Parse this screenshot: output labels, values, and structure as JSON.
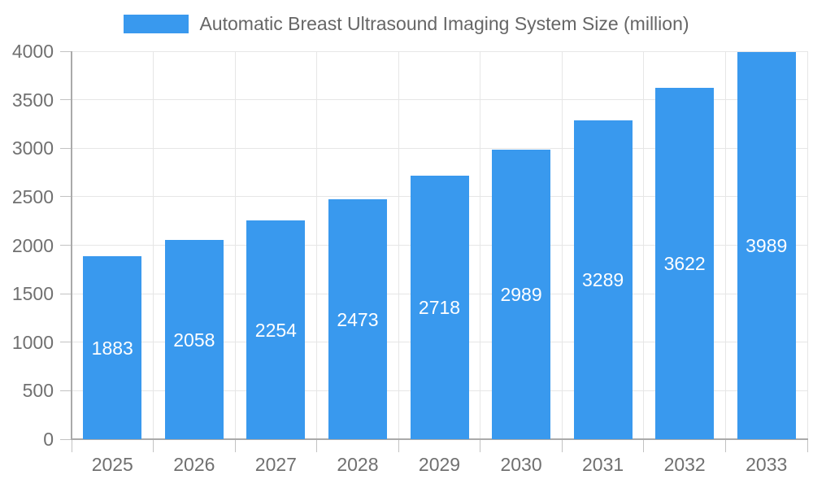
{
  "chart_data": {
    "type": "bar",
    "title": "Automatic Breast Ultrasound Imaging System Size (million)",
    "categories": [
      "2025",
      "2026",
      "2027",
      "2028",
      "2029",
      "2030",
      "2031",
      "2032",
      "2033"
    ],
    "values": [
      1883,
      2058,
      2254,
      2473,
      2718,
      2989,
      3289,
      3622,
      3989
    ],
    "xlabel": "",
    "ylabel": "",
    "ylim": [
      0,
      4000
    ],
    "yticks": [
      0,
      500,
      1000,
      1500,
      2000,
      2500,
      3000,
      3500,
      4000
    ],
    "grid": true,
    "legend_position": "top",
    "colors": {
      "bar": "#3999EE",
      "bar_label": "#FFFFFF",
      "axis_text": "#707070",
      "legend_text": "#666666",
      "grid_line": "#E6E6E6",
      "axis_line": "#AAAAAA",
      "tick": "#C2C2C2",
      "background": "#FFFFFF"
    }
  }
}
